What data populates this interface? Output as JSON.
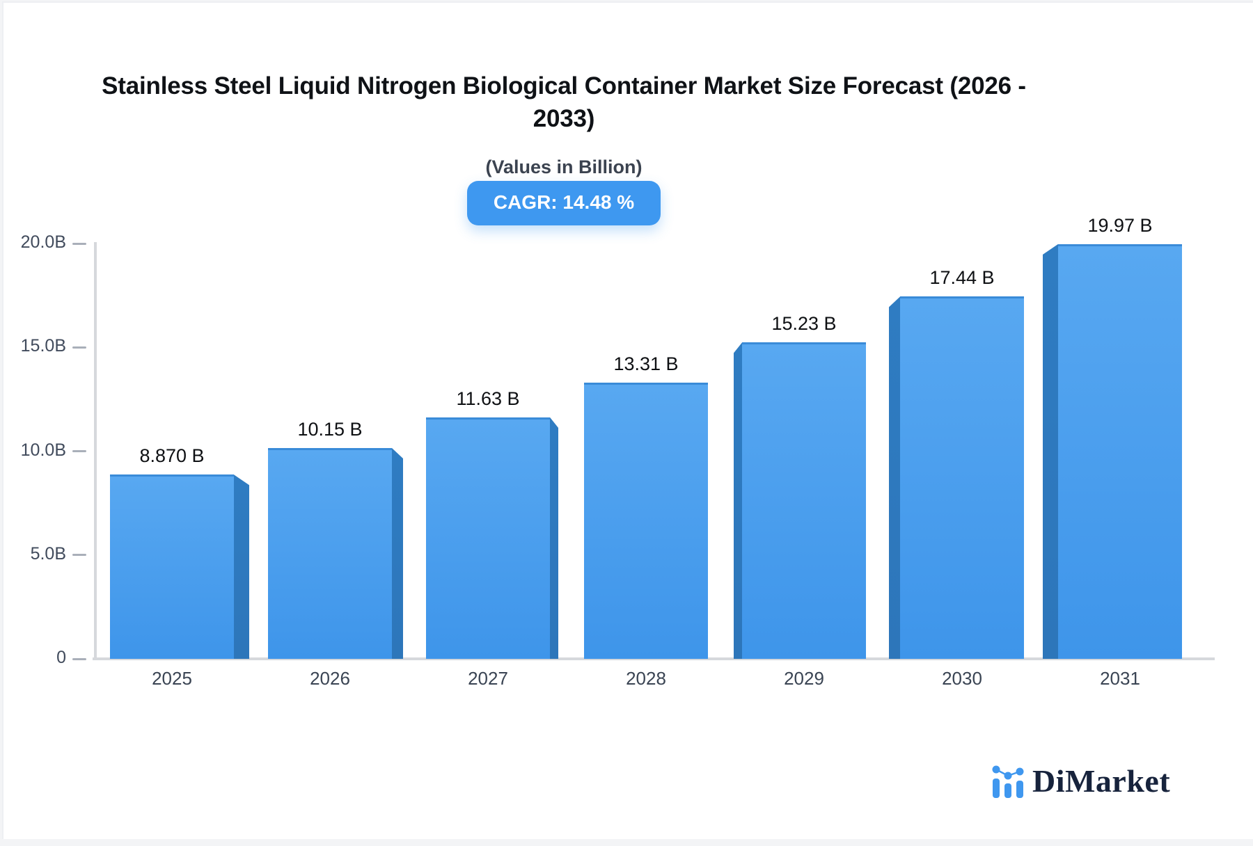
{
  "page": {
    "background": "#f3f4f6",
    "card_background": "#ffffff"
  },
  "header": {
    "title": "Stainless Steel Liquid Nitrogen Biological Container Market Size Forecast (2026 - 2033)",
    "subtitle": "(Values in Billion)",
    "cagr_badge": "CAGR: 14.48 %"
  },
  "footer": {
    "brand": "DiMarket"
  },
  "chart_data": {
    "type": "bar",
    "title": "Stainless Steel Liquid Nitrogen Biological Container Market Size Forecast (2026 - 2033)",
    "subtitle": "(Values in Billion)",
    "cagr_percent": 14.48,
    "unit": "Billion",
    "categories": [
      "2025",
      "2026",
      "2027",
      "2028",
      "2029",
      "2030",
      "2031"
    ],
    "values": [
      8.87,
      10.15,
      11.63,
      13.31,
      15.23,
      17.44,
      19.97
    ],
    "value_labels": [
      "8.870 B",
      "10.15 B",
      "11.63 B",
      "13.31 B",
      "15.23 B",
      "17.44 B",
      "19.97 B"
    ],
    "ylim": [
      0,
      20
    ],
    "yticks": [
      {
        "value": 20,
        "label": "20.0B"
      },
      {
        "value": 15,
        "label": "15.0B"
      },
      {
        "value": 10,
        "label": "10.0B"
      },
      {
        "value": 5,
        "label": "5.0B"
      },
      {
        "value": 0,
        "label": "0"
      }
    ],
    "grid": false,
    "legend": "none",
    "bar_style": "3d-perspective",
    "colors": {
      "bar_face_top": "#58a8f1",
      "bar_face_bottom": "#3e95ea",
      "bar_top_edge": "#3a8bd8",
      "bar_side": "#2f7cc2",
      "badge": "#3e98f0",
      "axis_line": "#d6d8dc",
      "tick": "#a9afb9",
      "tick_label": "#414b5c",
      "category_label": "#3a4453",
      "value_label": "#0e1013",
      "brand_navy": "#17233c",
      "brand_blue": "#3f97ef"
    }
  }
}
